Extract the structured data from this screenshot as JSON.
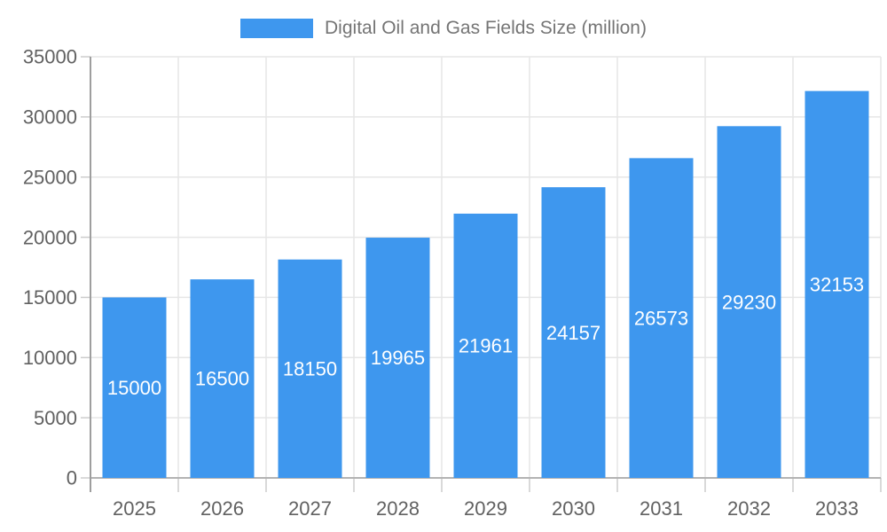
{
  "chart_data": {
    "type": "bar",
    "series_name": "Digital Oil and Gas Fields Size (million)",
    "categories": [
      "2025",
      "2026",
      "2027",
      "2028",
      "2029",
      "2030",
      "2031",
      "2032",
      "2033"
    ],
    "values": [
      15000,
      16500,
      18150,
      19965,
      21961,
      24157,
      26573,
      29230,
      32153
    ],
    "bar_labels": [
      "15000",
      "16500",
      "18150",
      "19965",
      "21961",
      "24157",
      "26573",
      "29230",
      "32153"
    ],
    "title": "",
    "xlabel": "",
    "ylabel": "",
    "ylim": [
      0,
      35000
    ],
    "yticks": [
      0,
      5000,
      10000,
      15000,
      20000,
      25000,
      30000,
      35000
    ],
    "ytick_labels": [
      "0",
      "5000",
      "10000",
      "15000",
      "20000",
      "25000",
      "30000",
      "35000"
    ],
    "grid": true,
    "legend_position": "top",
    "colors": {
      "bar": "#3E97EE",
      "bar_label_text": "#ffffff",
      "grid_line": "#e6e6e6",
      "axis_line": "#9e9e9e",
      "baseline": "#b3b3b3",
      "tick_mark": "#cccccc",
      "axis_text": "#616161",
      "legend_text": "#757575",
      "background": "#ffffff"
    }
  }
}
